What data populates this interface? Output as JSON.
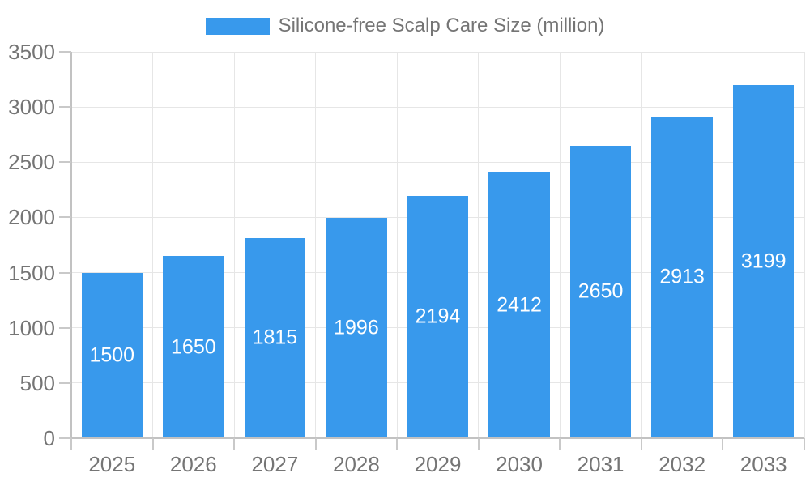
{
  "legend": {
    "label": "Silicone-free Scalp Care Size (million)",
    "swatch_color": "#3899EC"
  },
  "chart_data": {
    "type": "bar",
    "title": "Silicone-free Scalp Care Size (million)",
    "categories": [
      "2025",
      "2026",
      "2027",
      "2028",
      "2029",
      "2030",
      "2031",
      "2032",
      "2033"
    ],
    "values": [
      1500,
      1650,
      1815,
      1996,
      2194,
      2412,
      2650,
      2913,
      3199
    ],
    "bar_labels": [
      "1500",
      "1650",
      "1815",
      "1996",
      "2194",
      "2412",
      "2650",
      "2913",
      "3199"
    ],
    "xlabel": "",
    "ylabel": "",
    "ylim": [
      0,
      3500
    ],
    "yticks": [
      0,
      500,
      1000,
      1500,
      2000,
      2500,
      3000,
      3500
    ],
    "grid": true,
    "legend_position": "top-center",
    "bar_width_fraction": 0.75
  },
  "colors": {
    "background": "#FFFFFF",
    "bar": "#3899EC",
    "grid_line": "#E6E6E6",
    "axis_line": "#C2C2C2",
    "tick_mark": "#C9C9C9",
    "tick_label": "#757575",
    "legend_text": "#757575",
    "bar_label": "#FFFFFF"
  }
}
